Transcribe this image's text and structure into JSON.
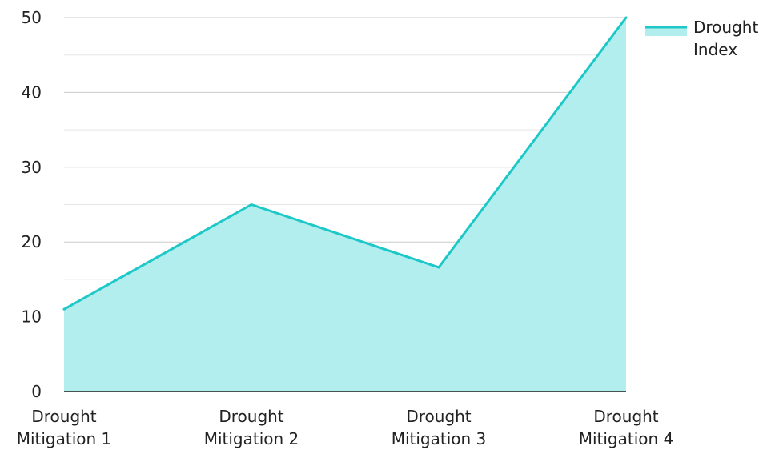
{
  "chart_data": {
    "type": "area",
    "title": "",
    "xlabel": "",
    "ylabel": "",
    "categories": [
      [
        "Drought",
        "Mitigation 1"
      ],
      [
        "Drought",
        "Mitigation 2"
      ],
      [
        "Drought",
        "Mitigation 3"
      ],
      [
        "Drought",
        "Mitigation 4"
      ]
    ],
    "series": [
      {
        "name": [
          "Drought",
          "Index"
        ],
        "values": [
          11,
          25,
          16.6,
          50
        ],
        "line_color": "#1ec8c8",
        "fill_color": "#b2eeed"
      }
    ],
    "ylim": [
      0,
      50
    ],
    "y_ticks": [
      0,
      10,
      20,
      30,
      40,
      50
    ],
    "y_minor_ticks": [
      5,
      15,
      25,
      35,
      45
    ],
    "grid": true,
    "legend_position": "top-right"
  }
}
